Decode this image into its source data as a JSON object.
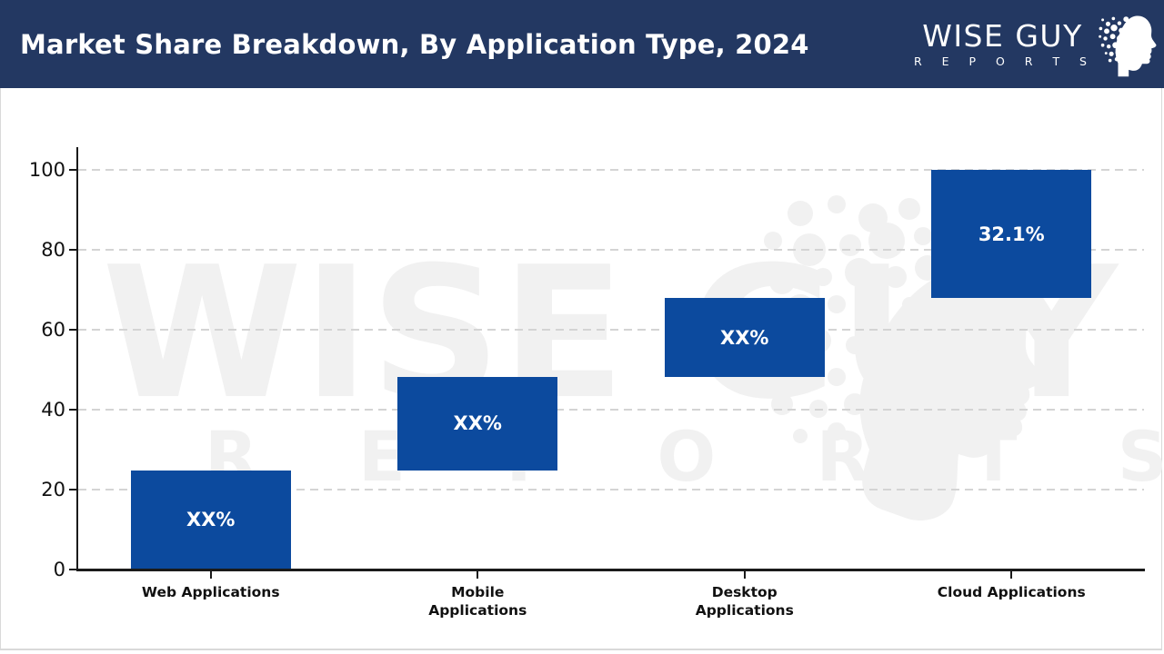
{
  "header": {
    "title": "Market Share Breakdown, By Application Type, 2024",
    "logo": {
      "wordmark": "WISE GUY",
      "subtitle": "R E P O R T S",
      "icon": "dotted-face-profile-icon"
    }
  },
  "watermark": {
    "wordmark": "WISE GUY",
    "subtitle": "R E P O R T S",
    "icon": "dotted-face-profile-watermark"
  },
  "colors": {
    "header_bg": "#233862",
    "bar": "#0c4a9e",
    "grid": "#d4d4d4",
    "axis": "#1a1a1a",
    "watermark": "#f1f1f1",
    "title_text": "#ffffff",
    "bar_label_text": "#ffffff"
  },
  "chart_data": {
    "type": "bar",
    "variant": "floating-cumulative-bars",
    "title": "Market Share Breakdown, By Application Type, 2024",
    "categories": [
      "Web Applications",
      "Mobile\nApplications",
      "Desktop\nApplications",
      "Cloud Applications"
    ],
    "segments": [
      {
        "category": "Web Applications",
        "start": 0,
        "end": 24.8,
        "label": "XX%"
      },
      {
        "category": "Mobile Applications",
        "start": 24.8,
        "end": 48.2,
        "label": "XX%"
      },
      {
        "category": "Desktop Applications",
        "start": 48.2,
        "end": 67.9,
        "label": "XX%"
      },
      {
        "category": "Cloud Applications",
        "start": 67.9,
        "end": 100,
        "label": "32.1%"
      }
    ],
    "xlabel": "",
    "ylabel": "",
    "ylim": [
      0,
      100
    ],
    "yticks": [
      0,
      20,
      40,
      60,
      80,
      100
    ],
    "grid": "horizontal-dashed",
    "legend": "none"
  }
}
